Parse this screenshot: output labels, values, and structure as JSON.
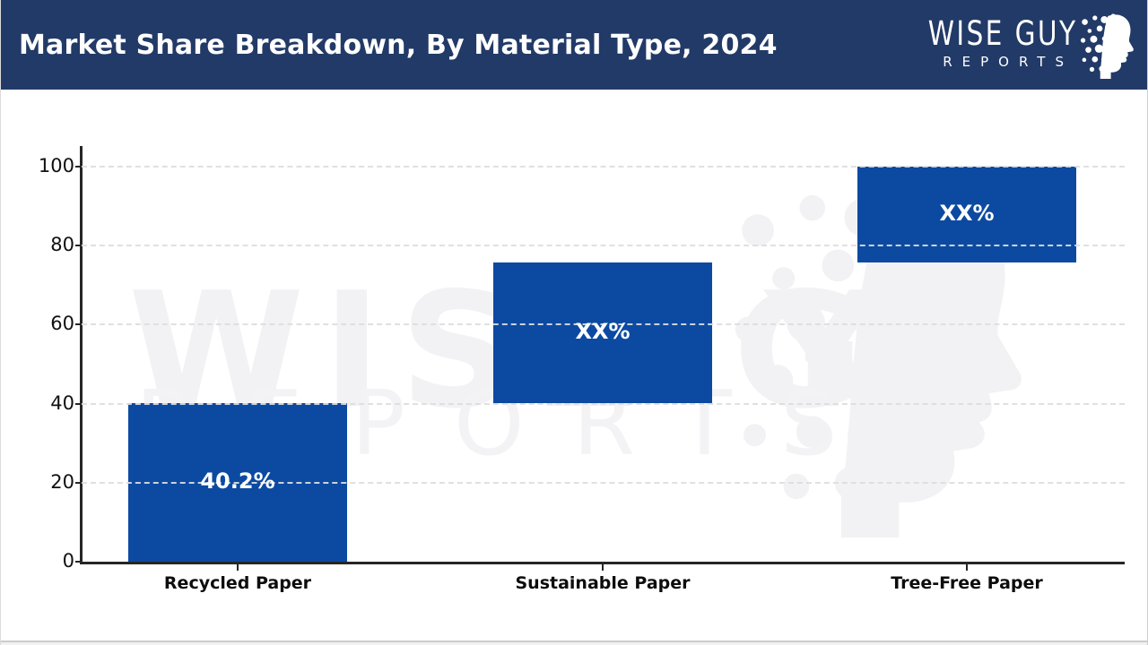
{
  "header": {
    "bg_color": "#223a67",
    "title": "Market Share Breakdown, By Material Type, 2024",
    "logo": {
      "wordmark": "WISE GUY",
      "subtext": "REPORTS",
      "head_icon": "dotted-head-profile"
    }
  },
  "watermark": {
    "line1_left": "WISE G",
    "line1_right": "Y",
    "line2": "REPORTS",
    "head_icon": "dotted-head-profile",
    "color": "#f2f2f4"
  },
  "chart_data": {
    "type": "bar",
    "subtype": "floating-waterfall",
    "title": "Market Share Breakdown, By Material Type, 2024",
    "categories": [
      "Recycled Paper",
      "Sustainable Paper",
      "Tree-Free Paper"
    ],
    "bars": [
      {
        "category": "Recycled Paper",
        "base": 0,
        "top": 40.2,
        "label": "40.2%"
      },
      {
        "category": "Sustainable Paper",
        "base": 40.2,
        "top": 75.8,
        "label": "XX%"
      },
      {
        "category": "Tree-Free Paper",
        "base": 75.8,
        "top": 100,
        "label": "XX%"
      }
    ],
    "xlabel": "",
    "ylabel": "",
    "yticks": [
      0,
      20,
      40,
      60,
      80,
      100
    ],
    "ylim": [
      0,
      105
    ],
    "grid": "horizontal-dashed-over-bars",
    "legend": "none",
    "bar_color": "#0c4aa1",
    "bar_label_color": "#ffffff",
    "axis_color": "#262626",
    "tick_label_color": "#111111",
    "gridline_color": "#dddddd"
  }
}
